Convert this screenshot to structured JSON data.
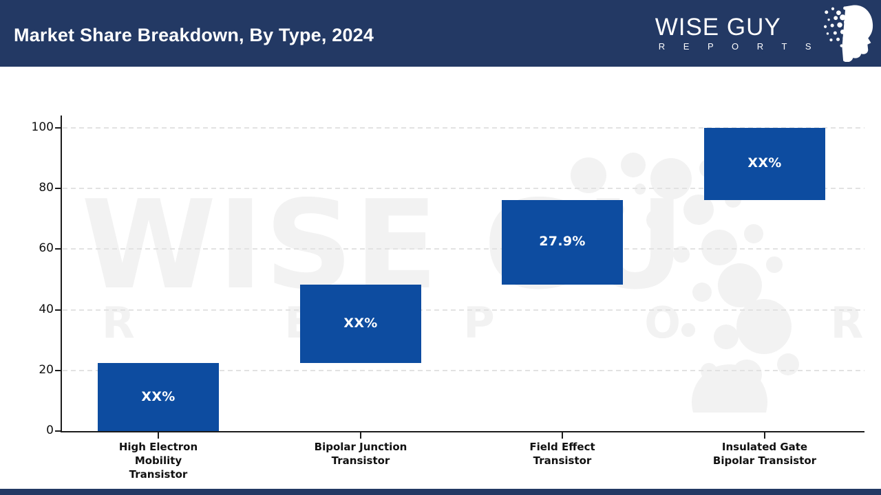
{
  "header": {
    "title": "Market Share Breakdown, By Type, 2024",
    "logo": {
      "line1": "WISE GUY",
      "line2": "R E P O R T S"
    },
    "bg_color": "#233964"
  },
  "watermark": {
    "line1": "WISE GU",
    "line2": "R E P O R T S"
  },
  "chart_data": {
    "type": "bar",
    "subtype": "waterfall",
    "title": "Market Share Breakdown, By Type, 2024",
    "categories": [
      "High Electron\nMobility\nTransistor",
      "Bipolar Junction\nTransistor",
      "Field Effect\nTransistor",
      "Insulated Gate\nBipolar Transistor"
    ],
    "starts": [
      0,
      22.4,
      48.3,
      76.2
    ],
    "values": [
      22.4,
      25.9,
      27.9,
      23.8
    ],
    "bar_labels": [
      "XX%",
      "XX%",
      "27.9%",
      "XX%"
    ],
    "bar_color": "#0d4ca0",
    "xlabel": "",
    "ylabel": "",
    "ylim": [
      0,
      100
    ],
    "yticks": [
      0,
      20,
      40,
      60,
      80,
      100
    ],
    "grid": "horizontal-dashed",
    "legend": "none"
  }
}
